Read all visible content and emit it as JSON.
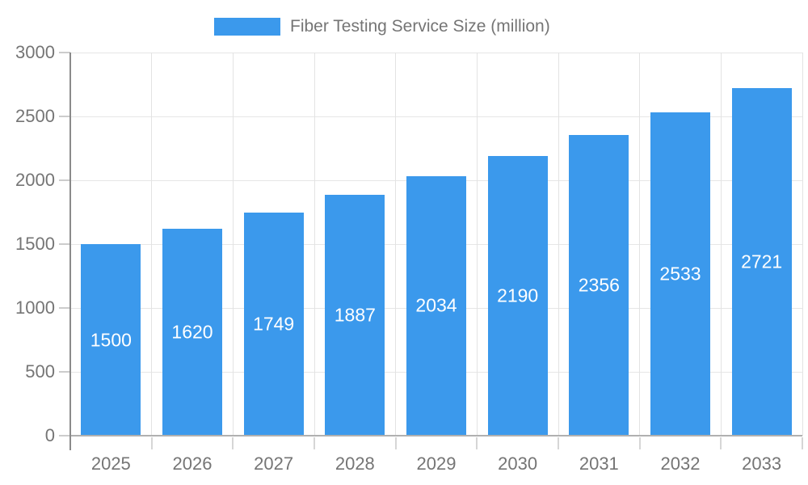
{
  "chart_data": {
    "type": "bar",
    "title": "",
    "categories": [
      "2025",
      "2026",
      "2027",
      "2028",
      "2029",
      "2030",
      "2031",
      "2032",
      "2033"
    ],
    "series": [
      {
        "name": "Fiber Testing Service Size (million)",
        "values": [
          1500,
          1620,
          1749,
          1887,
          2034,
          2190,
          2356,
          2533,
          2721
        ]
      }
    ],
    "legend_position": "top",
    "grid": true,
    "xlabel": "",
    "ylabel": "",
    "ylim": [
      0,
      3000
    ],
    "y_ticks": [
      0,
      500,
      1000,
      1500,
      2000,
      2500,
      3000
    ],
    "colors": {
      "bar": "#3B99EC",
      "bar_value_label": "#FFFFFF",
      "axis_text": "#757575",
      "h_gridline": "#E6E6E6",
      "v_gridline": "#E3E3E3",
      "x_axis_line": "#B0B0B0",
      "y_axis_line": "#8A8A8A",
      "y_tick": "#CCCCCC",
      "x_tick": "#D6D6D6"
    }
  }
}
